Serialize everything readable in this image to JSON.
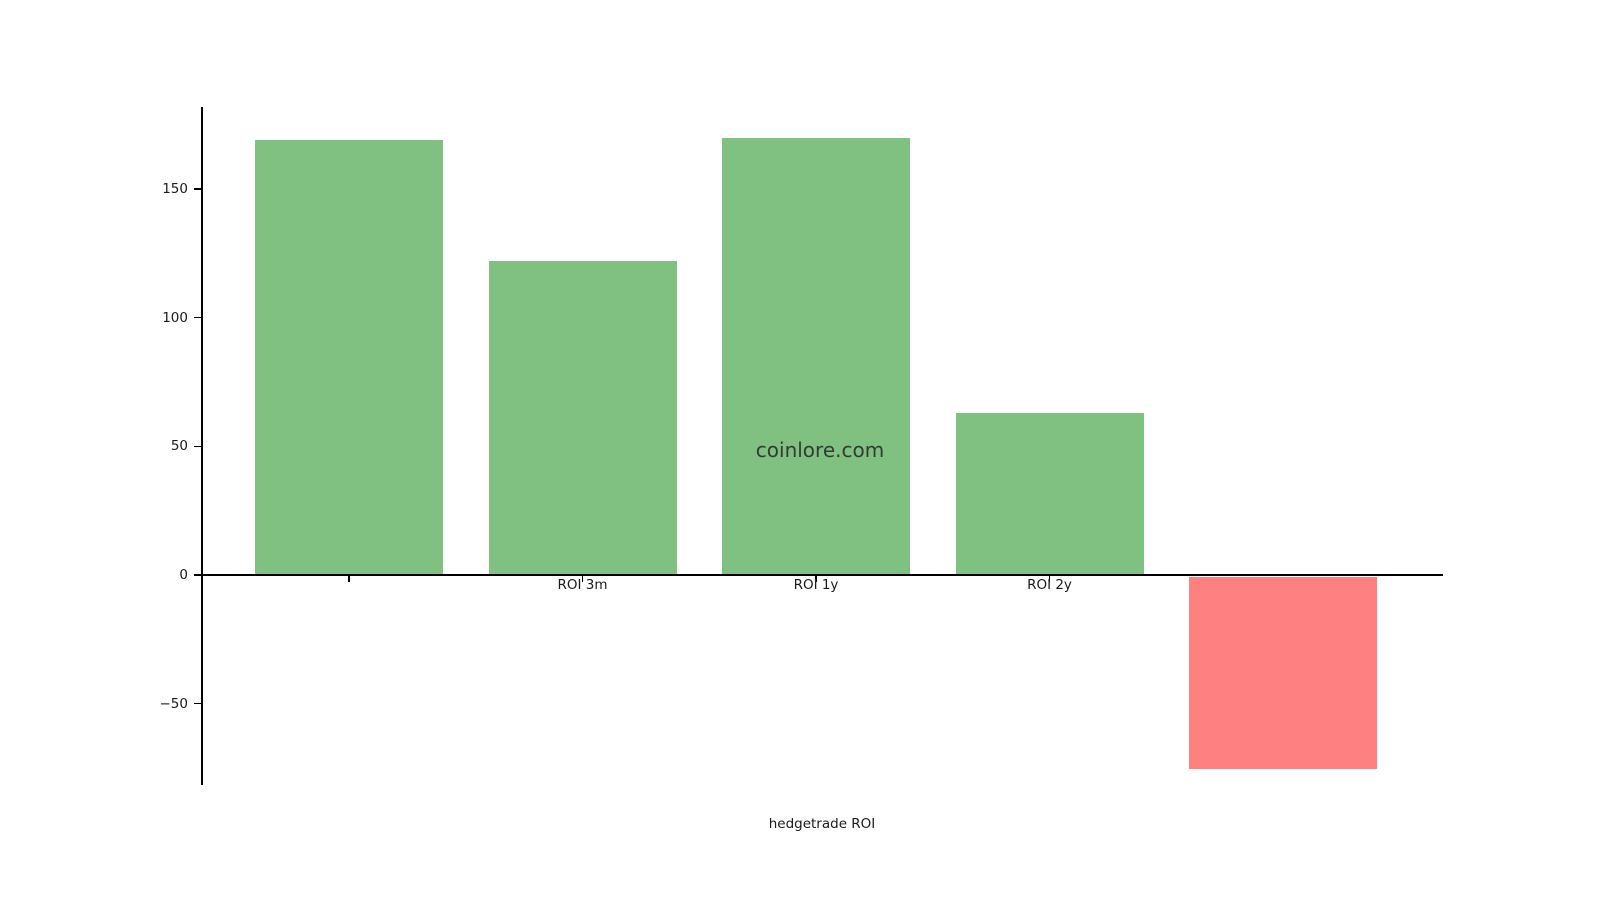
{
  "chart_data": {
    "type": "bar",
    "title": "hedgetrade ROI",
    "watermark": "coinlore.com",
    "categories": [
      "",
      "ROI 3m",
      "ROI 1y",
      "ROI 2y",
      ""
    ],
    "values": [
      169,
      122,
      170,
      63,
      -75
    ],
    "x_tick_shown": [
      true,
      true,
      true,
      true,
      false
    ],
    "y_ticks": [
      -50,
      0,
      50,
      100,
      150
    ],
    "y_tick_labels": [
      "−50",
      "0",
      "50",
      "100",
      "150"
    ],
    "ylim": [
      -81.5,
      181.8
    ],
    "positive_color": "#80c080",
    "negative_color": "#ff8080",
    "axis_color": "#000000",
    "text_color": "#1a1a1a",
    "background_color": "#ffffff",
    "grid": "off",
    "legend": "none"
  }
}
